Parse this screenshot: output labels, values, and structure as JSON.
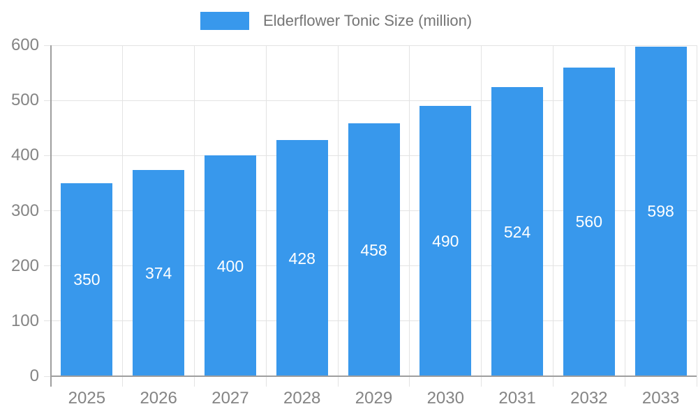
{
  "legend": {
    "label": "Elderflower Tonic Size (million)"
  },
  "colors": {
    "bar": "#3898ec",
    "grid": "#e3e3e3",
    "axis": "#9e9e9e",
    "tick_text": "#848484",
    "legend_text": "#757575",
    "bar_label_text": "#ffffff",
    "background": "#ffffff"
  },
  "chart_data": {
    "type": "bar",
    "title": "Elderflower Tonic Size (million)",
    "categories": [
      "2025",
      "2026",
      "2027",
      "2028",
      "2029",
      "2030",
      "2031",
      "2032",
      "2033"
    ],
    "values": [
      350,
      374,
      400,
      428,
      458,
      490,
      524,
      560,
      598
    ],
    "xlabel": "",
    "ylabel": "",
    "ylim": [
      0,
      600
    ],
    "yticks": [
      0,
      100,
      200,
      300,
      400,
      500,
      600
    ],
    "grid": true,
    "legend_position": "top-center",
    "value_labels": "centered inside bars, white"
  }
}
